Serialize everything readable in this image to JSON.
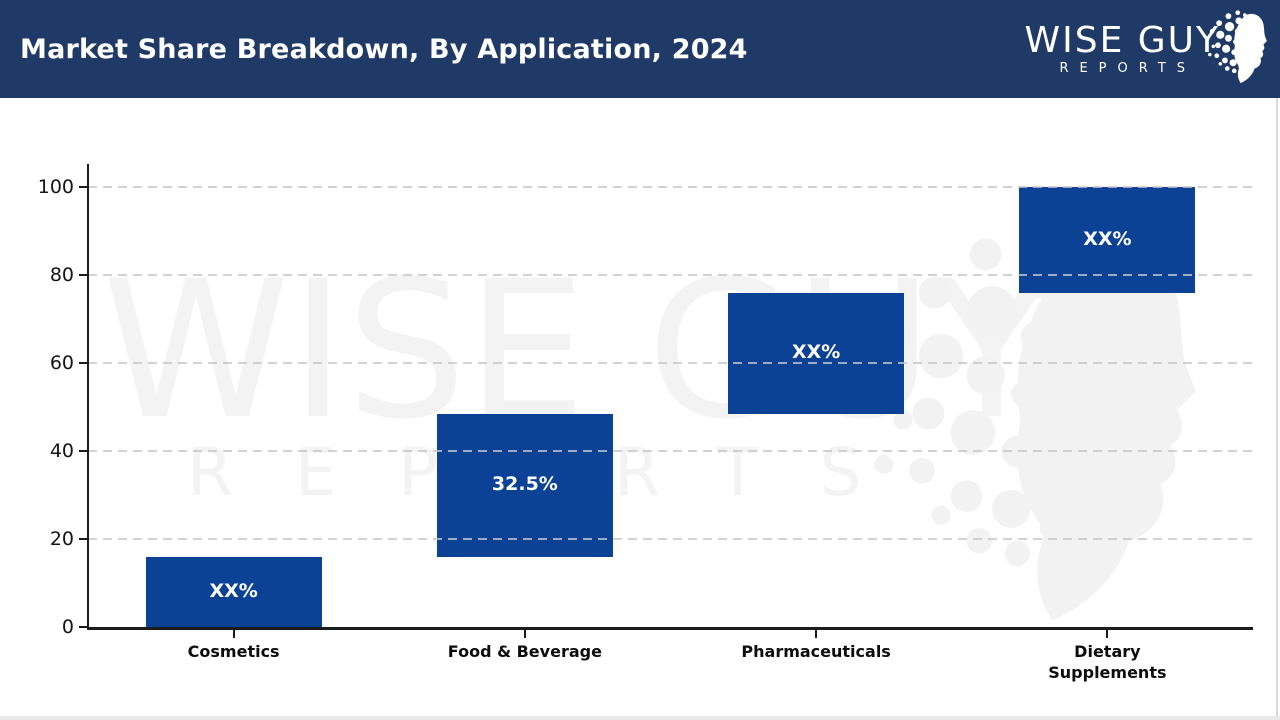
{
  "header": {
    "title": "Market Share Breakdown, By Application, 2024",
    "bg_color": "#1f3a66",
    "logo": {
      "name": "WISE GUY",
      "subtitle": "REPORTS"
    }
  },
  "watermark": {
    "name": "WISE GUY",
    "subtitle": "REPORTS"
  },
  "chart_data": {
    "type": "bar",
    "subtype": "floating-segment-waterfall",
    "title": "Market Share Breakdown, By Application, 2024",
    "categories": [
      "Cosmetics",
      "Food & Beverage",
      "Pharmaceuticals",
      "Dietary\nSupplements"
    ],
    "bars": [
      {
        "name": "Cosmetics",
        "start": 0,
        "end": 16,
        "label": "XX%"
      },
      {
        "name": "Food & Beverage",
        "start": 16,
        "end": 48.5,
        "label": "32.5%"
      },
      {
        "name": "Pharmaceuticals",
        "start": 48.5,
        "end": 76,
        "label": "XX%"
      },
      {
        "name": "Dietary Supplements",
        "start": 76,
        "end": 100,
        "label": "XX%"
      }
    ],
    "xlabel": "",
    "ylabel": "",
    "ylim": [
      0,
      100
    ],
    "yticks": [
      0,
      20,
      40,
      60,
      80,
      100
    ],
    "grid": "horizontal-dashed",
    "legend": "none",
    "bar_color": "#0c4295",
    "bar_label_color": "#ffffff",
    "axis_color": "#1c1c1c",
    "gridline_color": "#c6c6c6"
  }
}
